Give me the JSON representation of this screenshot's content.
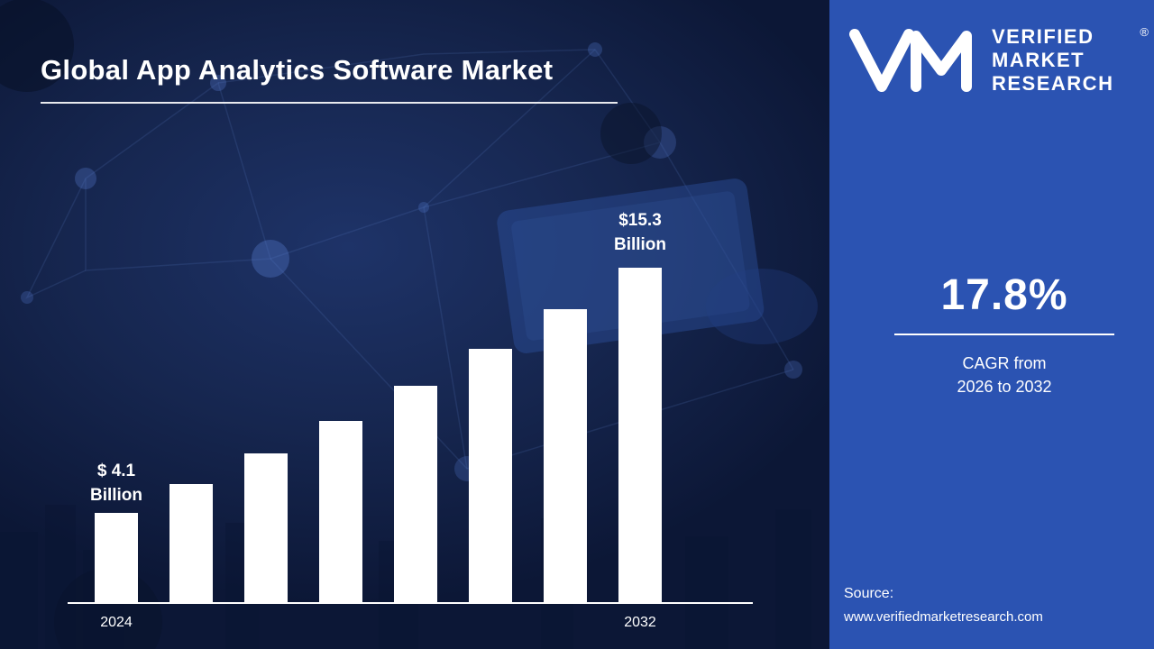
{
  "chart_data": {
    "type": "bar",
    "title": "Global App Analytics Software Market",
    "categories": [
      "2024",
      "",
      "",
      "",
      "",
      "",
      "",
      "2032"
    ],
    "values": [
      4.1,
      5.4,
      6.8,
      8.3,
      9.9,
      11.6,
      13.4,
      15.3
    ],
    "xlabel": "",
    "ylabel": "",
    "ylim": [
      0,
      16.5
    ],
    "grid": false,
    "legend": false,
    "bar_color": "#ffffff",
    "annotations": [
      {
        "category": "2024",
        "lines": [
          "$ 4.1",
          "Billion"
        ]
      },
      {
        "category": "2032",
        "lines": [
          "$15.3",
          "Billion"
        ]
      }
    ]
  },
  "right_panel": {
    "logo": {
      "monogram": "VM",
      "line1": "VERIFIED",
      "line2": "MARKET",
      "line3": "RESEARCH",
      "registered_mark": "®"
    },
    "cagr_value": "17.8%",
    "cagr_caption_line1": "CAGR from",
    "cagr_caption_line2": "2026 to 2032",
    "source_label": "Source:",
    "source_url": "www.verifiedmarketresearch.com"
  },
  "colors": {
    "left_bg": "#14254f",
    "right_bg": "#2b53b2",
    "bar": "#ffffff",
    "text": "#ffffff"
  }
}
